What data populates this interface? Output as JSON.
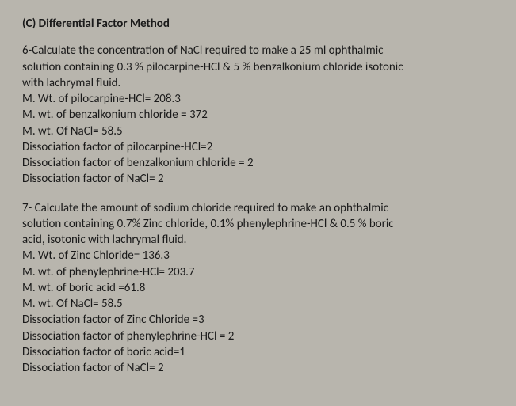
{
  "heading": "(C) Differential Factor Method",
  "problem6": {
    "question_l1": "6-Calculate the concentration of NaCl required to make a 25 ml ophthalmic",
    "question_l2": "solution containing 0.3 % pilocarpine-HCl & 5 % benzalkonium chloride isotonic",
    "question_l3": "with lachrymal fluid.",
    "mw1": "M. Wt. of pilocarpine-HCl= 208.3",
    "mw2": "M. wt.  of benzalkonium chloride = 372",
    "mw3": "M. wt. Of NaCl= 58.5",
    "df1": "Dissociation factor of pilocarpine-HCl=2",
    "df2": "Dissociation factor of benzalkonium chloride = 2",
    "df3": "Dissociation factor of NaCl= 2"
  },
  "problem7": {
    "question_l1": "7- Calculate the amount of sodium chloride required to make an ophthalmic",
    "question_l2": "solution containing 0.7% Zinc chloride, 0.1% phenylephrine-HCl & 0.5 % boric",
    "question_l3": "acid, isotonic with lachrymal fluid.",
    "mw1": "M. Wt. of Zinc Chloride= 136.3",
    "mw2": "M. wt.  of phenylephrine-HCl= 203.7",
    "mw3": "M. wt.  of boric acid =61.8",
    "mw4": "M. wt. Of NaCl= 58.5",
    "df1": "Dissociation factor of Zinc Chloride =3",
    "df2": "Dissociation factor of phenylephrine-HCl = 2",
    "df3": "Dissociation factor of boric acid=1",
    "df4": "Dissociation factor of NaCl= 2"
  }
}
